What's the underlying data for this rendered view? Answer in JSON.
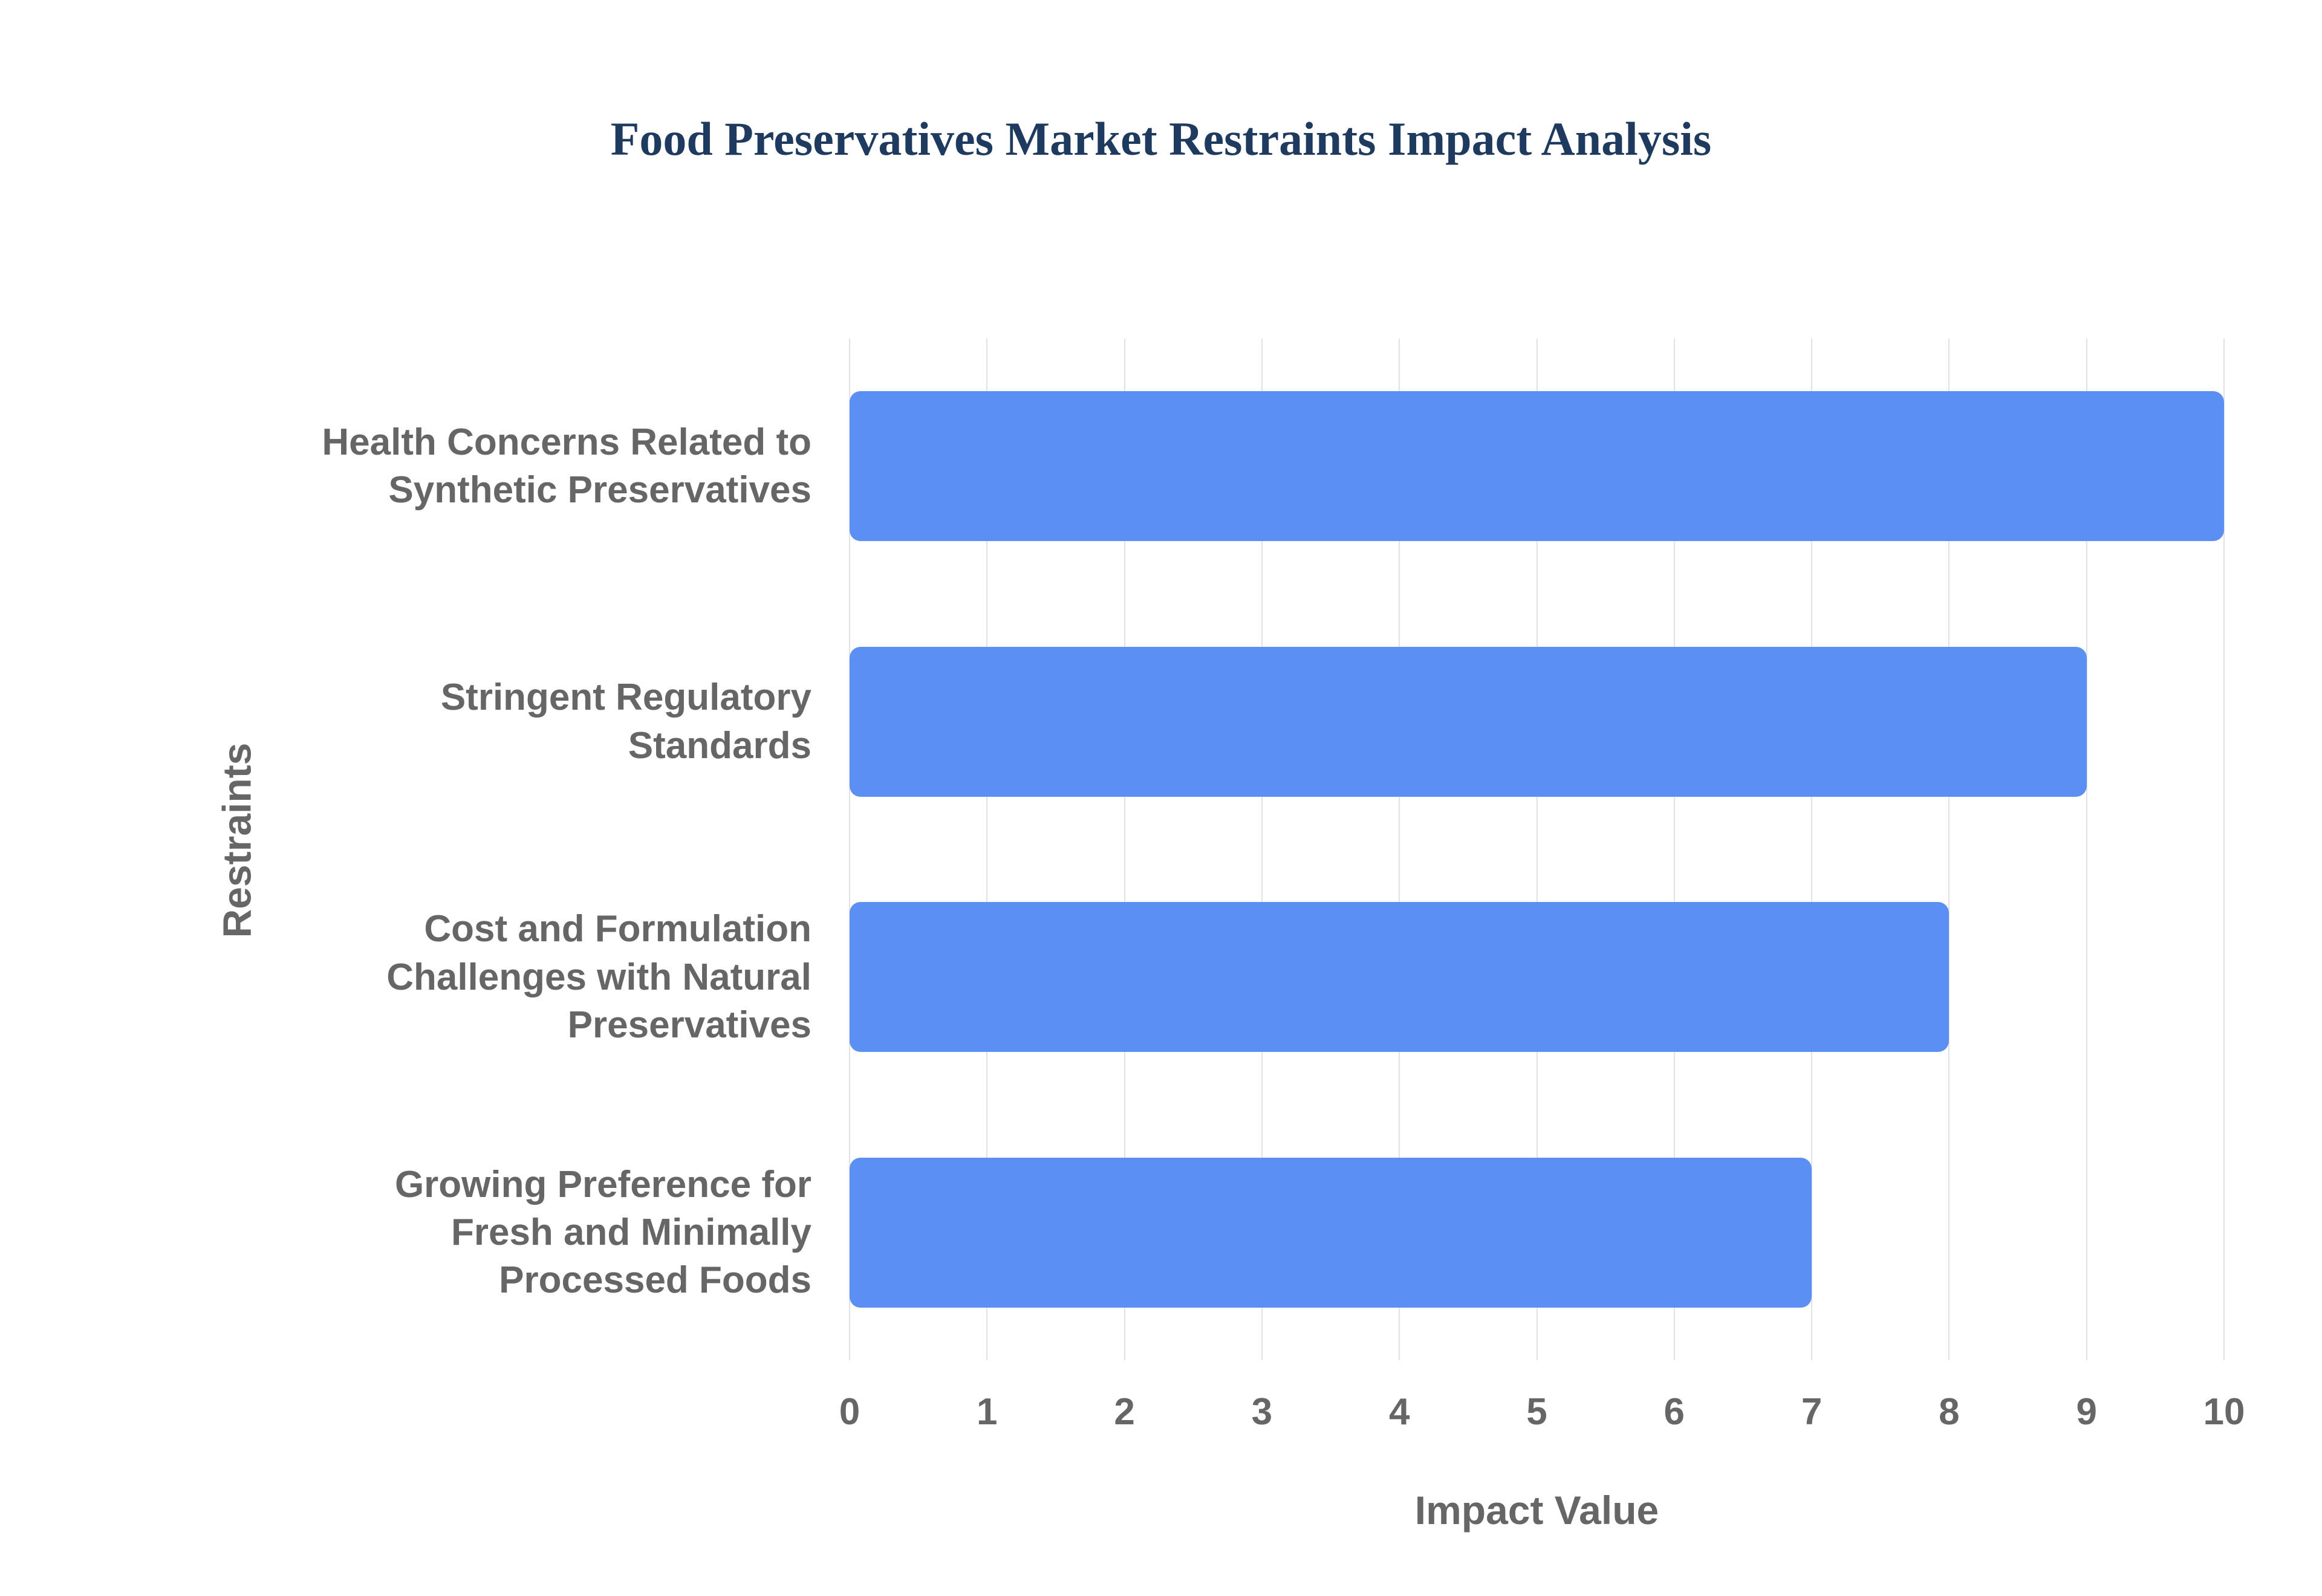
{
  "chart_data": {
    "type": "bar",
    "orientation": "horizontal",
    "title": "Food Preservatives Market Restraints Impact Analysis",
    "xlabel": "Impact Value",
    "ylabel": "Restraints",
    "categories": [
      "Health Concerns Related to Synthetic Preservatives",
      "Stringent Regulatory Standards",
      "Cost and Formulation Challenges with Natural Preservatives",
      "Growing Preference for Fresh and Minimally Processed Foods"
    ],
    "values": [
      10,
      9,
      8,
      7
    ],
    "xlim": [
      0,
      10
    ],
    "xticks": [
      0,
      1,
      2,
      3,
      4,
      5,
      6,
      7,
      8,
      9,
      10
    ],
    "grid": true,
    "legend": false,
    "bar_color": "#5b8ff3",
    "title_color": "#1f3a5f",
    "axis_text_color": "#666666",
    "gridline_color": "#e2e2e2",
    "background_color": "#ffffff"
  }
}
